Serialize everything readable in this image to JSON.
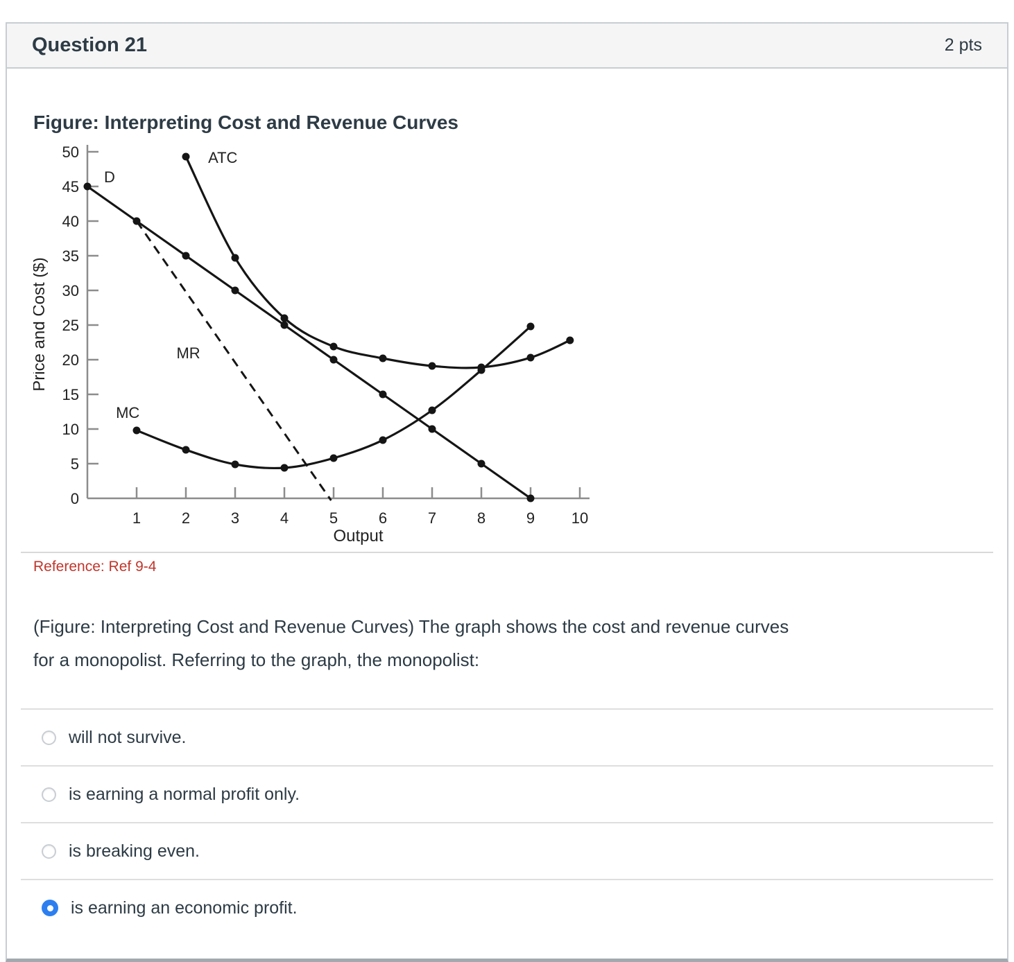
{
  "header": {
    "title": "Question 21",
    "points": "2 pts"
  },
  "figure": {
    "title": "Figure: Interpreting Cost and Revenue Curves",
    "reference": "Reference: Ref 9-4"
  },
  "question": {
    "line1": "(Figure: Interpreting Cost and Revenue Curves) The graph shows the cost and revenue curves",
    "line2": "for a monopolist. Referring to the graph, the monopolist:"
  },
  "options": [
    {
      "label": "will not survive.",
      "selected": false
    },
    {
      "label": "is earning a normal profit only.",
      "selected": false
    },
    {
      "label": "is breaking even.",
      "selected": false
    },
    {
      "label": "is earning an economic profit.",
      "selected": true
    }
  ],
  "colors": {
    "header_bg": "#F5F5F5",
    "card_border": "#C7CDD1",
    "text": "#2D3B45",
    "reference_red": "#C0362C",
    "accent_blue": "#2D7FF0",
    "curve_black": "#151515",
    "axis_gray": "#8C8C8C"
  },
  "chart_data": {
    "type": "line",
    "title": "",
    "xlabel": "Output",
    "ylabel": "Price and Cost ($)",
    "xlim": [
      0,
      10.4
    ],
    "ylim": [
      0,
      50
    ],
    "x_ticks": [
      1,
      2,
      3,
      4,
      5,
      6,
      7,
      8,
      9,
      10
    ],
    "y_ticks": [
      0,
      5,
      10,
      15,
      20,
      25,
      30,
      35,
      40,
      45,
      50
    ],
    "grid": false,
    "legend": "inline-labels",
    "series": [
      {
        "name": "D",
        "style": "solid",
        "smooth": false,
        "markers": true,
        "points": [
          [
            0,
            45
          ],
          [
            1,
            40
          ],
          [
            2,
            35
          ],
          [
            3,
            30
          ],
          [
            4,
            25
          ],
          [
            5,
            20
          ],
          [
            6,
            15
          ],
          [
            7,
            10
          ],
          [
            8,
            5
          ],
          [
            9,
            0
          ]
        ]
      },
      {
        "name": "MR",
        "style": "dashed",
        "smooth": false,
        "markers": false,
        "points": [
          [
            1,
            40
          ],
          [
            4.95,
            -0.3
          ]
        ]
      },
      {
        "name": "ATC",
        "style": "solid",
        "smooth": true,
        "markers": true,
        "points": [
          [
            2,
            49.3
          ],
          [
            3,
            34.7
          ],
          [
            4,
            26
          ],
          [
            5,
            21.9
          ],
          [
            6,
            20.2
          ],
          [
            7,
            19.1
          ],
          [
            8,
            18.9
          ],
          [
            9,
            20.3
          ],
          [
            9.8,
            22.8
          ]
        ]
      },
      {
        "name": "MC",
        "style": "solid",
        "smooth": true,
        "markers": true,
        "points": [
          [
            1,
            9.8
          ],
          [
            2,
            7
          ],
          [
            3,
            4.9
          ],
          [
            4,
            4.4
          ],
          [
            5,
            5.8
          ],
          [
            6,
            8.4
          ],
          [
            7,
            12.7
          ],
          [
            8,
            18.5
          ],
          [
            9,
            24.8
          ]
        ]
      }
    ],
    "labels": [
      {
        "text": "D",
        "x": 0.45,
        "y": 46.4
      },
      {
        "text": "ATC",
        "x": 2.75,
        "y": 49.2
      },
      {
        "text": "MR",
        "x": 2.05,
        "y": 21.0
      },
      {
        "text": "MC",
        "x": 0.82,
        "y": 12.4
      }
    ]
  }
}
